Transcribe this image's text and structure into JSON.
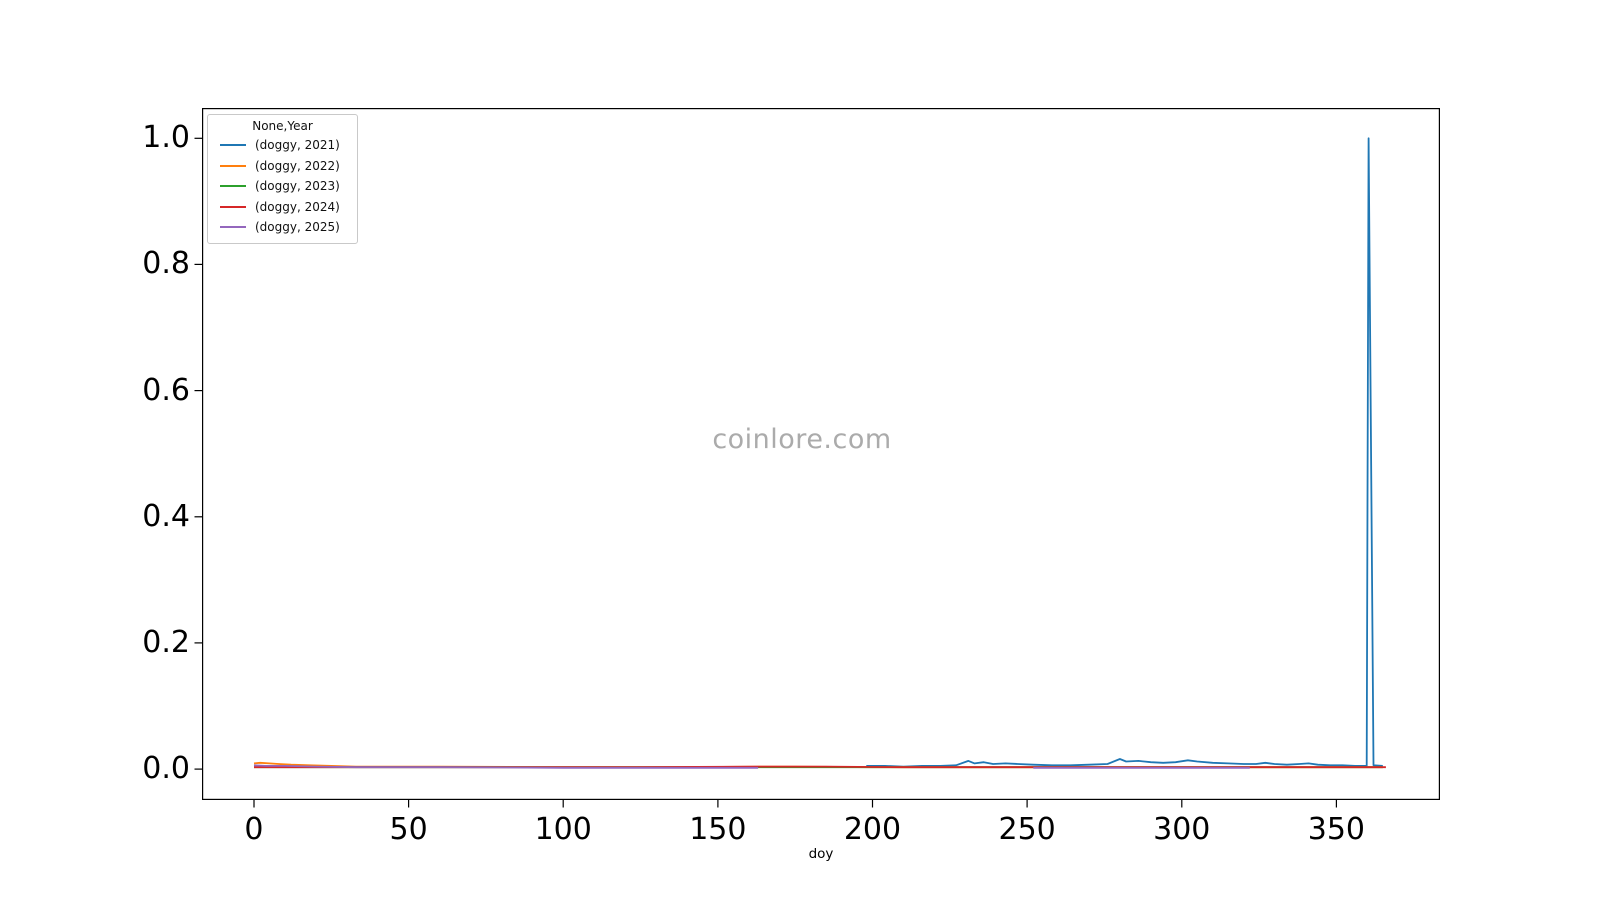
{
  "watermark": "coinlore.com",
  "chart_data": {
    "type": "line",
    "title": "",
    "xlabel": "doy",
    "ylabel": "",
    "xlim": [
      -16.8,
      383.5
    ],
    "ylim": [
      -0.049,
      1.048
    ],
    "x_ticks": [
      0,
      50,
      100,
      150,
      200,
      250,
      300,
      350
    ],
    "x_tick_labels": [
      "0",
      "50",
      "100",
      "150",
      "200",
      "250",
      "300",
      "350"
    ],
    "y_ticks": [
      0.0,
      0.2,
      0.4,
      0.6,
      0.8,
      1.0
    ],
    "y_tick_labels": [
      "0.0",
      "0.2",
      "0.4",
      "0.6",
      "0.8",
      "1.0"
    ],
    "grid": false,
    "legend": {
      "title": "None,Year",
      "position": "upper-left"
    },
    "frame_color": "#000000",
    "series": [
      {
        "name": "(doggy, 2021)",
        "color": "#1f77b4",
        "points": [
          [
            198,
            0.005
          ],
          [
            204,
            0.005
          ],
          [
            210,
            0.004
          ],
          [
            216,
            0.005
          ],
          [
            222,
            0.005
          ],
          [
            227,
            0.006
          ],
          [
            231,
            0.013
          ],
          [
            233,
            0.009
          ],
          [
            236,
            0.011
          ],
          [
            239,
            0.008
          ],
          [
            243,
            0.009
          ],
          [
            247,
            0.008
          ],
          [
            252,
            0.007
          ],
          [
            258,
            0.006
          ],
          [
            264,
            0.006
          ],
          [
            270,
            0.007
          ],
          [
            276,
            0.008
          ],
          [
            280,
            0.016
          ],
          [
            282,
            0.012
          ],
          [
            286,
            0.013
          ],
          [
            290,
            0.011
          ],
          [
            294,
            0.01
          ],
          [
            298,
            0.011
          ],
          [
            302,
            0.014
          ],
          [
            305,
            0.012
          ],
          [
            310,
            0.01
          ],
          [
            315,
            0.009
          ],
          [
            320,
            0.008
          ],
          [
            324,
            0.008
          ],
          [
            327,
            0.01
          ],
          [
            330,
            0.008
          ],
          [
            334,
            0.007
          ],
          [
            338,
            0.008
          ],
          [
            341,
            0.009
          ],
          [
            344,
            0.007
          ],
          [
            348,
            0.006
          ],
          [
            352,
            0.006
          ],
          [
            356,
            0.005
          ],
          [
            359.8,
            0.005
          ],
          [
            360.4,
            1.0
          ],
          [
            362,
            0.006
          ],
          [
            365,
            0.005
          ]
        ]
      },
      {
        "name": "(doggy, 2022)",
        "color": "#ff7f0e",
        "points": [
          [
            0,
            0.009
          ],
          [
            2,
            0.01
          ],
          [
            5,
            0.009
          ],
          [
            8,
            0.008
          ],
          [
            12,
            0.007
          ],
          [
            18,
            0.006
          ],
          [
            25,
            0.005
          ],
          [
            33,
            0.004
          ],
          [
            60,
            0.004
          ],
          [
            100,
            0.003
          ],
          [
            140,
            0.003
          ],
          [
            163,
            0.004
          ],
          [
            175,
            0.004
          ],
          [
            200,
            0.003
          ],
          [
            250,
            0.003
          ],
          [
            300,
            0.003
          ],
          [
            350,
            0.003
          ],
          [
            365,
            0.003
          ]
        ]
      },
      {
        "name": "(doggy, 2023)",
        "color": "#2ca02c",
        "points": [
          [
            0,
            0.003
          ],
          [
            60,
            0.003
          ],
          [
            120,
            0.003
          ],
          [
            180,
            0.003
          ],
          [
            240,
            0.003
          ],
          [
            300,
            0.003
          ],
          [
            365,
            0.003
          ]
        ]
      },
      {
        "name": "(doggy, 2024)",
        "color": "#d62728",
        "points": [
          [
            0,
            0.003
          ],
          [
            40,
            0.003
          ],
          [
            80,
            0.003
          ],
          [
            120,
            0.003
          ],
          [
            163,
            0.004
          ],
          [
            185,
            0.004
          ],
          [
            210,
            0.003
          ],
          [
            240,
            0.003
          ],
          [
            252,
            0.003
          ],
          [
            280,
            0.003
          ],
          [
            310,
            0.003
          ],
          [
            322,
            0.003
          ],
          [
            345,
            0.003
          ],
          [
            366,
            0.003
          ]
        ]
      },
      {
        "name": "(doggy, 2025)",
        "color": "#9467bd",
        "points": [
          [
            0,
            0.006
          ],
          [
            4,
            0.005
          ],
          [
            10,
            0.005
          ],
          [
            20,
            0.004
          ],
          [
            33,
            0.003
          ],
          [
            60,
            0.003
          ],
          [
            100,
            0.002
          ],
          [
            130,
            0.002
          ],
          [
            163,
            0.002
          ],
          null,
          [
            252,
            0.002
          ],
          [
            275,
            0.002
          ],
          [
            300,
            0.002
          ],
          [
            322,
            0.002
          ]
        ]
      }
    ]
  }
}
